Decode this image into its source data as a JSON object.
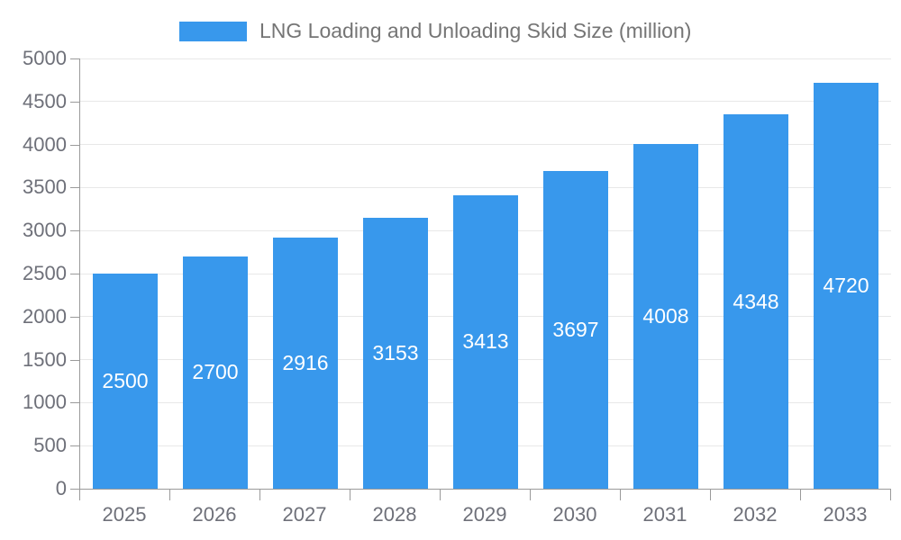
{
  "chart_data": {
    "type": "bar",
    "title": "LNG Loading and Unloading Skid Size (million)",
    "categories": [
      "2025",
      "2026",
      "2027",
      "2028",
      "2029",
      "2030",
      "2031",
      "2032",
      "2033"
    ],
    "values": [
      2500,
      2700,
      2916,
      3153,
      3413,
      3697,
      4008,
      4348,
      4720
    ],
    "xlabel": "",
    "ylabel": "",
    "ylim": [
      0,
      5000
    ],
    "ytick_step": 500,
    "ytick_labels": [
      "0",
      "500",
      "1000",
      "1500",
      "2000",
      "2500",
      "3000",
      "3500",
      "4000",
      "4500",
      "5000"
    ],
    "grid": true,
    "legend_position": "top",
    "value_label_position": "inside-center",
    "colors": {
      "bar": "#3898EC",
      "axis_label": "#6E7079",
      "legend_text": "#757575",
      "grid_line": "#E8E8E8",
      "axis_line": "#9A9A9A",
      "value_label": "#FFFFFF",
      "background": "#FFFFFF"
    }
  }
}
